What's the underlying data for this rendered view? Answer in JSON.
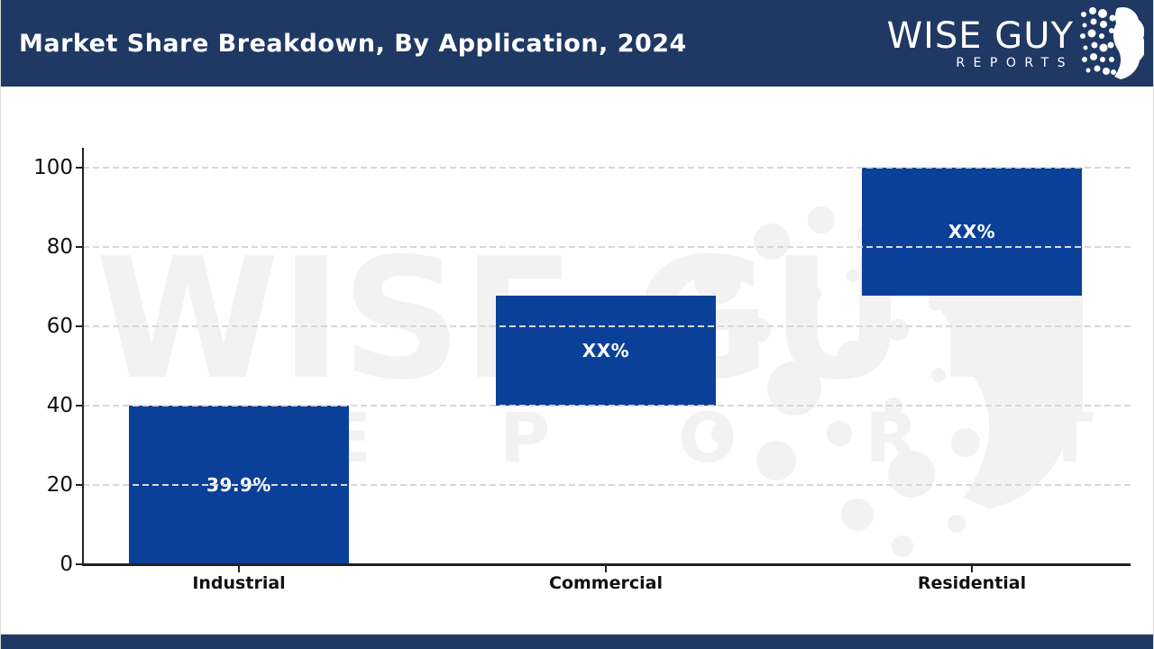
{
  "header": {
    "title": "Market Share Breakdown, By Application, 2024",
    "logo": {
      "line1": "WISE GUY",
      "line2": "REPORTS",
      "face_icon": "dotted-face-profile"
    }
  },
  "watermark": {
    "line1": "WISE GUY",
    "line2": "R E P O R T S",
    "face_icon": "dotted-face-profile"
  },
  "colors": {
    "header_bg": "#1f3864",
    "footer_bg": "#1f3864",
    "bar": "#0b4098",
    "bar_label": "#ffffff",
    "grid": "#d8d8d8",
    "axis": "#222222",
    "tick_label": "#111111",
    "watermark": "#f2f2f2"
  },
  "chart_data": {
    "type": "bar",
    "subtype": "floating-range-waterfall",
    "title": "Market Share Breakdown, By Application, 2024",
    "categories": [
      "Industrial",
      "Commercial",
      "Residential"
    ],
    "series": [
      {
        "name": "Market Share %",
        "ranges": [
          [
            0,
            39.9
          ],
          [
            39.9,
            67.8
          ],
          [
            67.8,
            100
          ]
        ]
      }
    ],
    "bar_labels": [
      "39.9%",
      "XX%",
      "XX%"
    ],
    "xlabel": "",
    "ylabel": "",
    "ylim": [
      0,
      100
    ],
    "yticks": [
      0,
      20,
      40,
      60,
      80,
      100
    ],
    "grid": "horizontal-dashed",
    "legend": "none"
  }
}
